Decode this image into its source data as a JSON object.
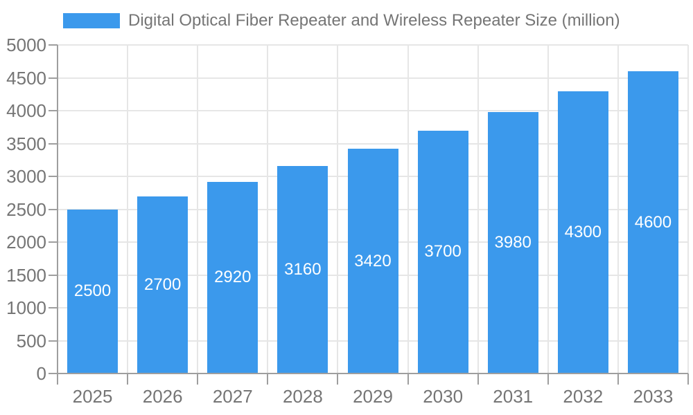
{
  "legend": {
    "label": "Digital Optical Fiber Repeater and Wireless Repeater Size (million)"
  },
  "chart_data": {
    "type": "bar",
    "title": "Digital Optical Fiber Repeater and Wireless Repeater Size (million)",
    "categories": [
      "2025",
      "2026",
      "2027",
      "2028",
      "2029",
      "2030",
      "2031",
      "2032",
      "2033"
    ],
    "values": [
      2500,
      2700,
      2920,
      3160,
      3420,
      3700,
      3980,
      4300,
      4600
    ],
    "xlabel": "",
    "ylabel": "",
    "ylim": [
      0,
      5000
    ],
    "yticks": [
      0,
      500,
      1000,
      1500,
      2000,
      2500,
      3000,
      3500,
      4000,
      4500,
      5000
    ],
    "grid": true,
    "legend_position": "top-left",
    "value_label_position": "inside-center"
  },
  "colors": {
    "bar": "#3B99EC",
    "grid": "#E6E6E6",
    "axis": "#9E9E9E",
    "text": "#757575",
    "value_label": "#FFFFFF",
    "background": "#FFFFFF"
  }
}
